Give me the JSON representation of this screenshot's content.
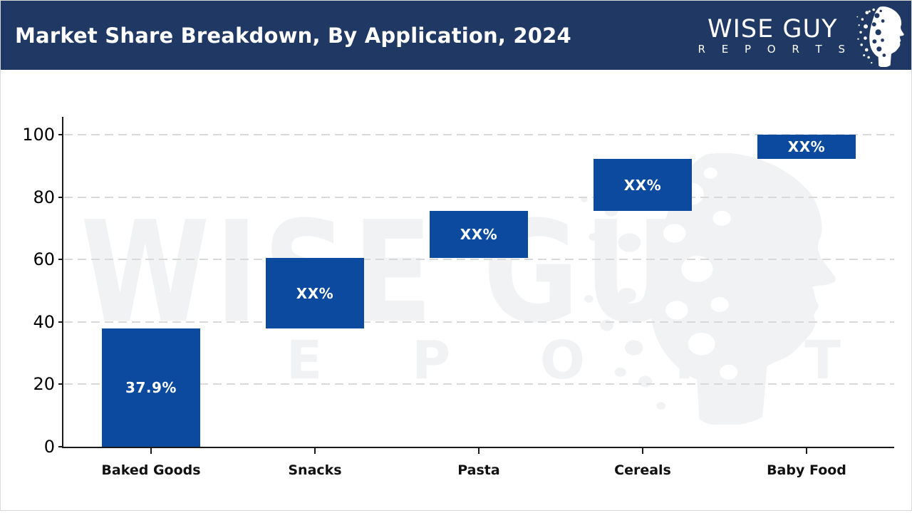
{
  "header": {
    "title": "Market Share Breakdown, By Application, 2024",
    "logo": {
      "line1": "WISE GUY",
      "line2": "R E P O R T S"
    }
  },
  "watermark": {
    "line1": "WISE GUY",
    "line2": "R E P O R T S"
  },
  "chart_data": {
    "type": "bar",
    "subtype": "waterfall",
    "title": "Market Share Breakdown, By Application, 2024",
    "xlabel": "",
    "ylabel": "",
    "categories": [
      "Baked Goods",
      "Snacks",
      "Pasta",
      "Cereals",
      "Baby Food"
    ],
    "segments": [
      {
        "category": "Baked Goods",
        "start": 0,
        "end": 37.9,
        "label": "37.9%"
      },
      {
        "category": "Snacks",
        "start": 37.9,
        "end": 60.4,
        "label": "XX%"
      },
      {
        "category": "Pasta",
        "start": 60.4,
        "end": 75.5,
        "label": "XX%"
      },
      {
        "category": "Cereals",
        "start": 75.5,
        "end": 92.2,
        "label": "XX%"
      },
      {
        "category": "Baby Food",
        "start": 92.2,
        "end": 100.0,
        "label": "XX%"
      }
    ],
    "yticks": [
      0,
      20,
      40,
      60,
      80,
      100
    ],
    "ylim": [
      0,
      105
    ],
    "grid": "horizontal-dashed",
    "legend": "none",
    "bar_color": "#0b4a9e",
    "bar_label_color": "#ffffff",
    "header_color": "#203864",
    "gridline_color": "#d9d9d9"
  }
}
